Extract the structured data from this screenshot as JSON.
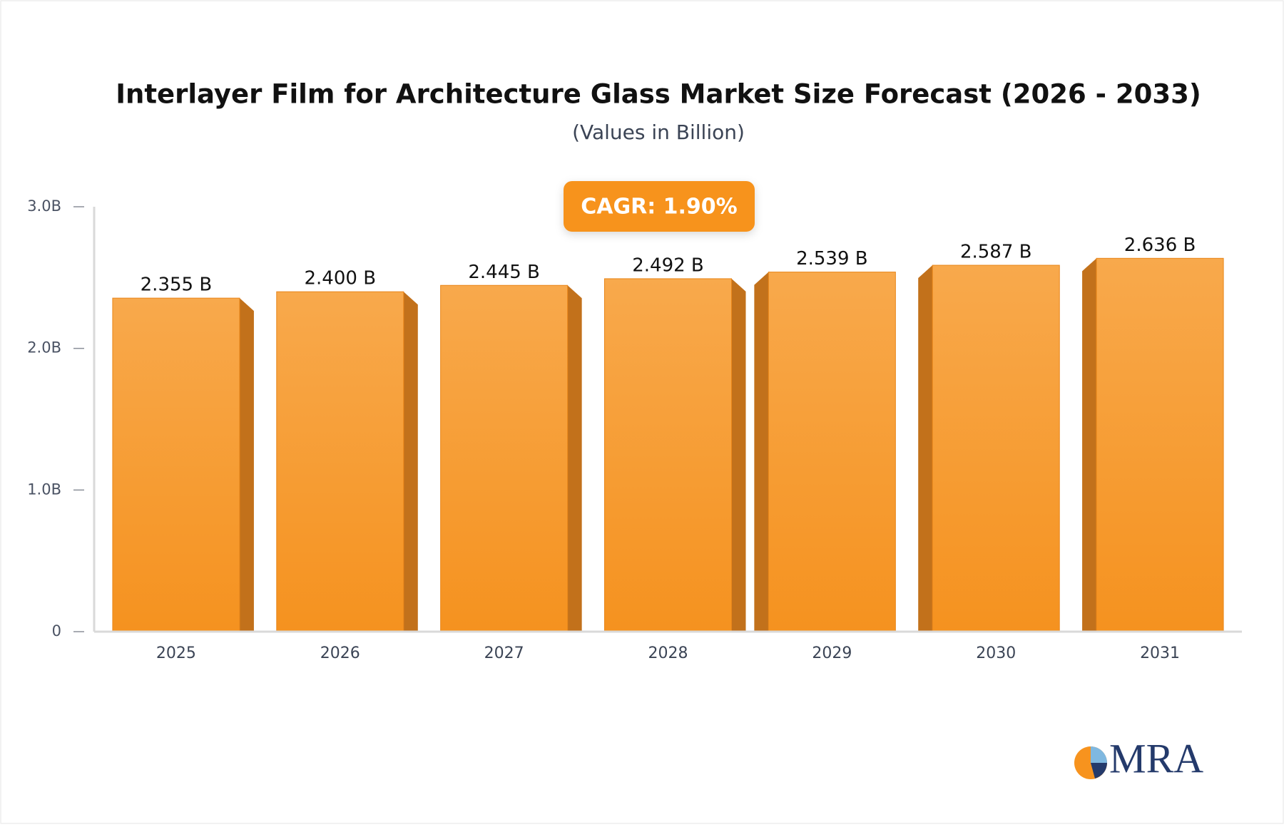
{
  "chart_data": {
    "type": "bar",
    "title": "Interlayer Film for Architecture Glass Market Size Forecast (2026 - 2033)",
    "subtitle": "(Values in Billion)",
    "annotation": "CAGR: 1.90%",
    "logo": "MRA",
    "categories": [
      "2025",
      "2026",
      "2027",
      "2028",
      "2029",
      "2030",
      "2031"
    ],
    "values": [
      2.355,
      2.4,
      2.445,
      2.492,
      2.539,
      2.587,
      2.636
    ],
    "value_labels": [
      "2.355 B",
      "2.400 B",
      "2.445 B",
      "2.492 B",
      "2.539 B",
      "2.587 B",
      "2.636 B"
    ],
    "color": "#f7981f",
    "ylim": [
      0,
      3
    ],
    "yticks": [
      0,
      {
        "value": 1,
        "label": "1.0B"
      },
      {
        "value": 2,
        "label": "2.0B"
      },
      {
        "value": 3,
        "label": "3.0B"
      }
    ],
    "grid": false
  }
}
